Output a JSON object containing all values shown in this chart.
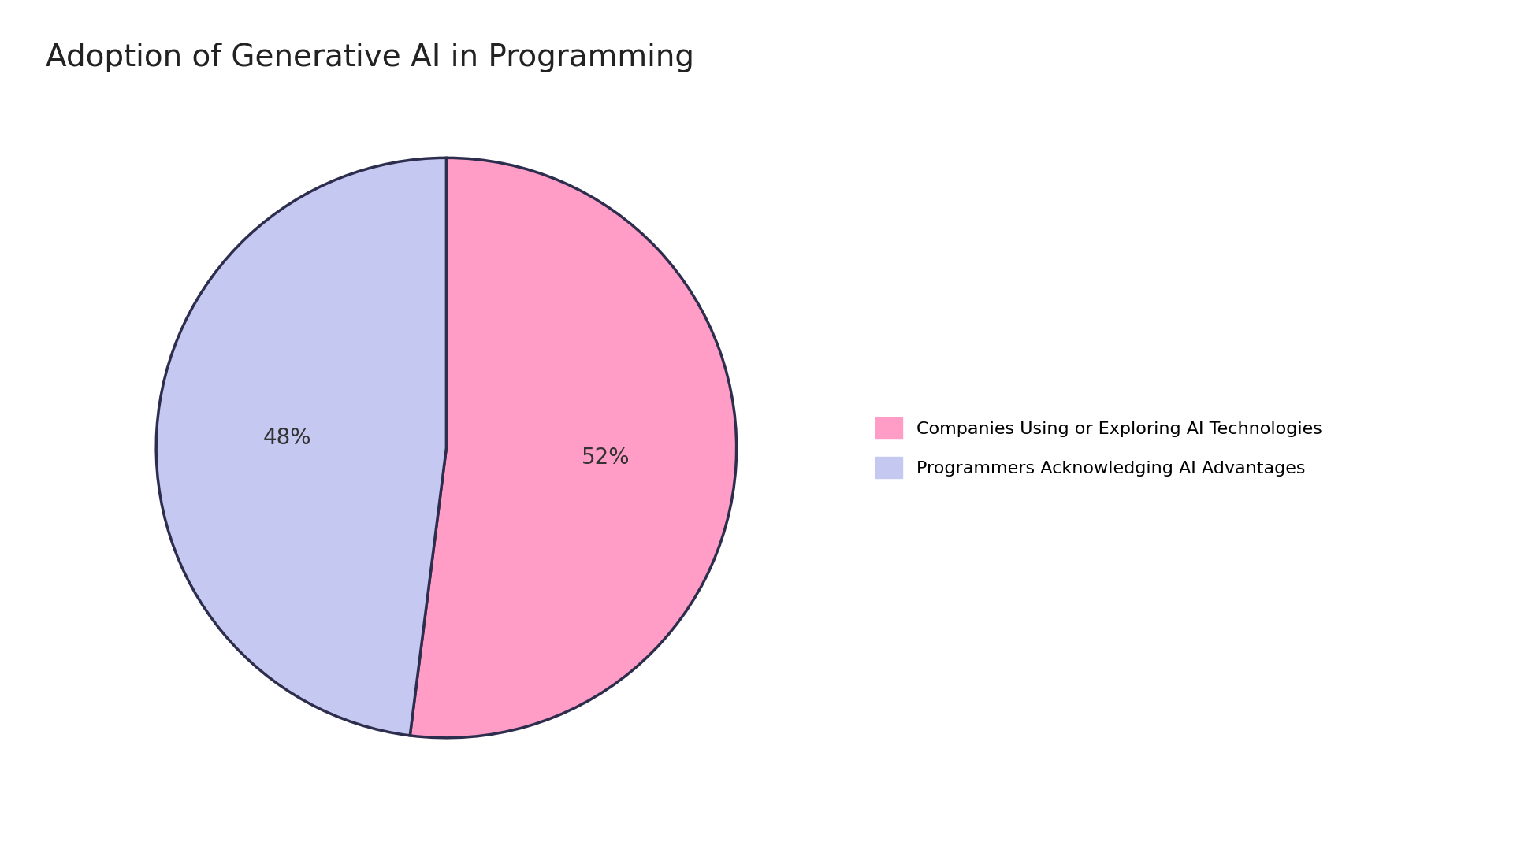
{
  "title": "Adoption of Generative AI in Programming",
  "slices": [
    52,
    48
  ],
  "labels": [
    "Companies Using or Exploring AI Technologies",
    "Programmers Acknowledging AI Advantages"
  ],
  "colors": [
    "#FF9DC6",
    "#C5C8F0"
  ],
  "edge_color": "#2D2D4E",
  "edge_width": 2.5,
  "pct_labels": [
    "52%",
    "48%"
  ],
  "background_color": "#FFFFFF",
  "title_fontsize": 28,
  "pct_fontsize": 20,
  "legend_fontsize": 16,
  "startangle": 90
}
